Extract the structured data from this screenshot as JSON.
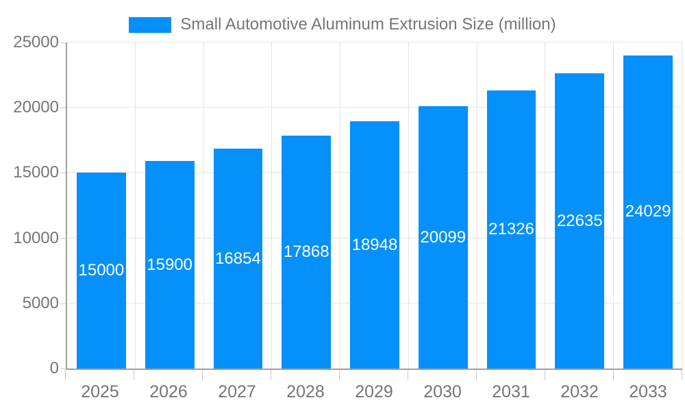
{
  "chart_data": {
    "type": "bar",
    "title": "Small Automotive Aluminum Extrusion Size (million)",
    "categories": [
      "2025",
      "2026",
      "2027",
      "2028",
      "2029",
      "2030",
      "2031",
      "2032",
      "2033"
    ],
    "values": [
      15000,
      15900,
      16854,
      17868,
      18948,
      20099,
      21326,
      22635,
      24029
    ],
    "xlabel": "",
    "ylabel": "",
    "ylim": [
      0,
      25000
    ],
    "yticks": [
      0,
      5000,
      10000,
      15000,
      20000,
      25000
    ],
    "grid": "full",
    "legend_position": "top",
    "colors": {
      "bar": "#0690FA",
      "value_label": "#ffffff",
      "axis_text": "#757575",
      "grid_line": "#e3e3e3",
      "axis_line": "#9e9e9e",
      "tick": "#c9c9c9"
    }
  }
}
